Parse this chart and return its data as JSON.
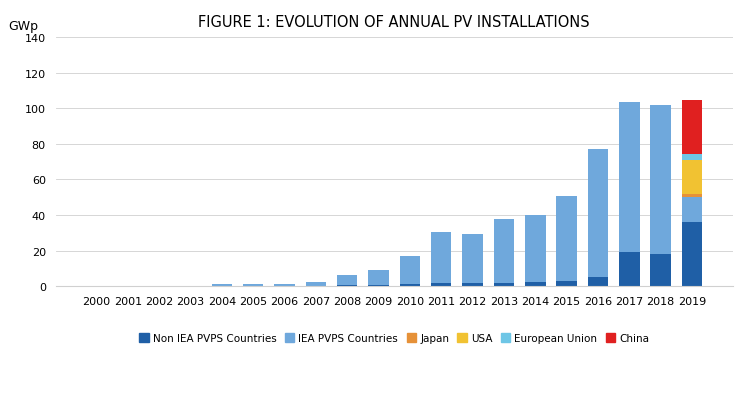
{
  "title": "FIGURE 1: EVOLUTION OF ANNUAL PV INSTALLATIONS",
  "gwp_label": "GWp",
  "years": [
    2000,
    2001,
    2002,
    2003,
    2004,
    2005,
    2006,
    2007,
    2008,
    2009,
    2010,
    2011,
    2012,
    2013,
    2014,
    2015,
    2016,
    2017,
    2018,
    2019
  ],
  "series": {
    "Non IEA PVPS Countries": [
      0.1,
      0.1,
      0.05,
      0.1,
      0.2,
      0.3,
      0.3,
      0.4,
      0.5,
      0.8,
      1.0,
      2.0,
      2.0,
      2.0,
      2.5,
      3.0,
      5.0,
      19.0,
      18.0,
      36.0
    ],
    "IEA PVPS Countries": [
      0.3,
      0.2,
      0.2,
      0.3,
      0.8,
      1.1,
      1.2,
      1.8,
      6.0,
      8.5,
      16.0,
      28.5,
      27.5,
      35.5,
      37.5,
      47.5,
      72.0,
      84.5,
      84.0,
      14.0
    ],
    "Japan": [
      0.0,
      0.0,
      0.0,
      0.0,
      0.0,
      0.0,
      0.0,
      0.0,
      0.0,
      0.0,
      0.0,
      0.0,
      0.0,
      0.0,
      0.0,
      0.0,
      0.0,
      0.0,
      0.0,
      2.0
    ],
    "USA": [
      0.0,
      0.0,
      0.0,
      0.0,
      0.0,
      0.0,
      0.0,
      0.0,
      0.0,
      0.0,
      0.0,
      0.0,
      0.0,
      0.0,
      0.0,
      0.0,
      0.0,
      0.0,
      0.0,
      19.0
    ],
    "European Union": [
      0.0,
      0.0,
      0.0,
      0.0,
      0.0,
      0.0,
      0.0,
      0.0,
      0.0,
      0.0,
      0.0,
      0.0,
      0.0,
      0.0,
      0.0,
      0.0,
      0.0,
      0.0,
      0.0,
      3.5
    ],
    "China": [
      0.0,
      0.0,
      0.0,
      0.0,
      0.0,
      0.0,
      0.0,
      0.0,
      0.0,
      0.0,
      0.0,
      0.0,
      0.0,
      0.0,
      0.0,
      0.0,
      0.0,
      0.0,
      0.0,
      30.0
    ]
  },
  "colors": {
    "Non IEA PVPS Countries": "#1f5fa6",
    "IEA PVPS Countries": "#6fa8dc",
    "Japan": "#e69138",
    "USA": "#f1c232",
    "European Union": "#6ec6e6",
    "China": "#e02020"
  },
  "ylim": [
    0,
    140
  ],
  "yticks": [
    0,
    20,
    40,
    60,
    80,
    100,
    120,
    140
  ],
  "background_color": "#ffffff",
  "grid_color": "#d0d0d0",
  "title_fontsize": 10.5,
  "tick_fontsize": 8,
  "legend_fontsize": 7.5,
  "gwp_fontsize": 9
}
